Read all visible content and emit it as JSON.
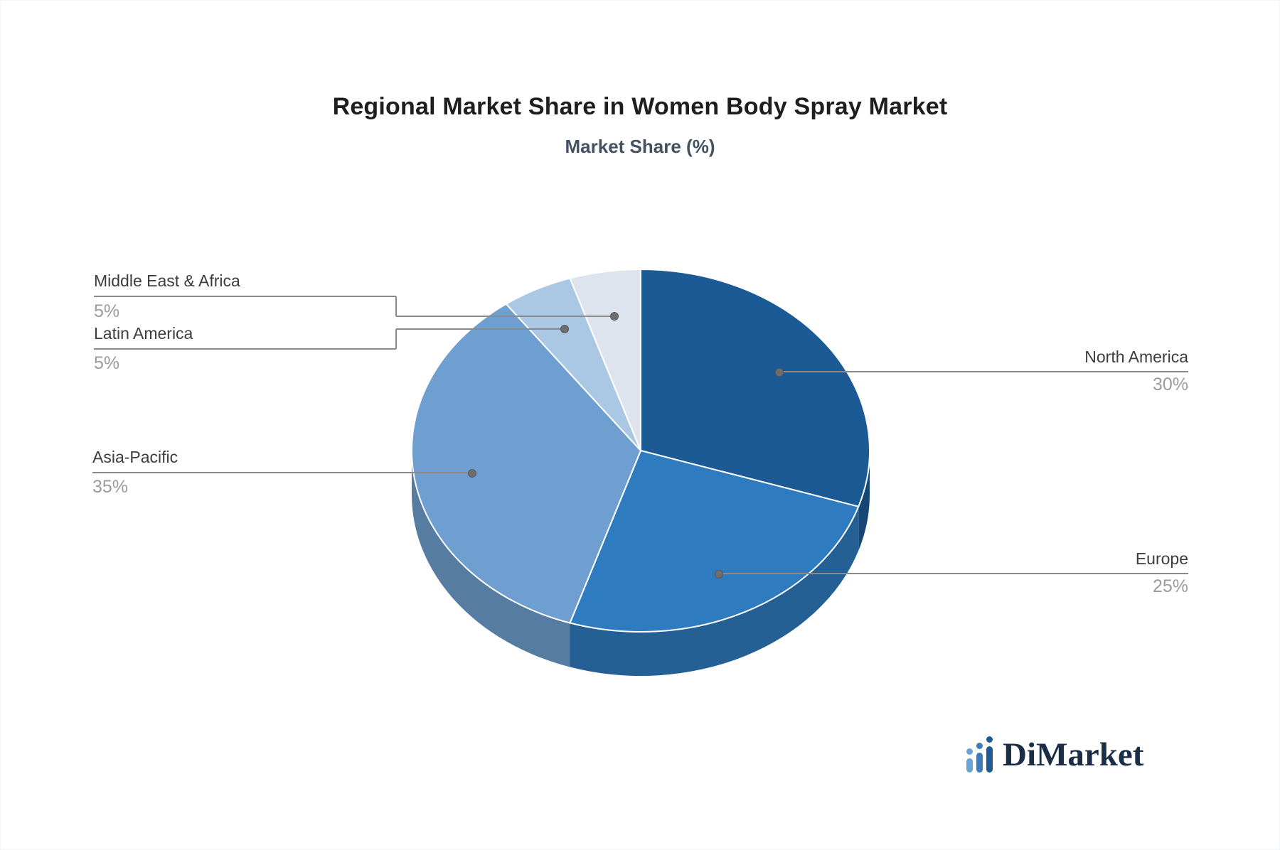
{
  "header": {
    "title": "Regional Market Share in Women Body Spray Market",
    "subtitle": "Market Share (%)"
  },
  "chart_data": {
    "type": "pie",
    "style": "3d",
    "title": "Regional Market Share in Women Body Spray Market",
    "subtitle": "Market Share (%)",
    "unit": "%",
    "direction": "clockwise",
    "start_angle": "12-oclock",
    "legend_position": "callout-labels",
    "points": [
      {
        "label": "North America",
        "value": 30,
        "value_text": "30%",
        "color": "#1c5a96"
      },
      {
        "label": "Europe",
        "value": 25,
        "value_text": "25%",
        "color": "#2f7bbf"
      },
      {
        "label": "Asia-Pacific",
        "value": 35,
        "value_text": "35%",
        "color": "#6f9fd0"
      },
      {
        "label": "Latin America",
        "value": 5,
        "value_text": "5%",
        "color": "#aac7e3"
      },
      {
        "label": "Middle East & Africa",
        "value": 5,
        "value_text": "5%",
        "color": "#dde4ee"
      }
    ],
    "connector_color": "#8a8a8a",
    "dot_color": "#6e6e6e",
    "label_color": "#3d3d3d",
    "value_color": "#9b9b9b"
  },
  "logo": {
    "text": "DiMarket",
    "text_color": "#1a2e45",
    "icon": "bar-chart-logo-icon",
    "icon_colors": [
      "#6aa3d8",
      "#3a7cbe",
      "#1d5a96"
    ]
  }
}
